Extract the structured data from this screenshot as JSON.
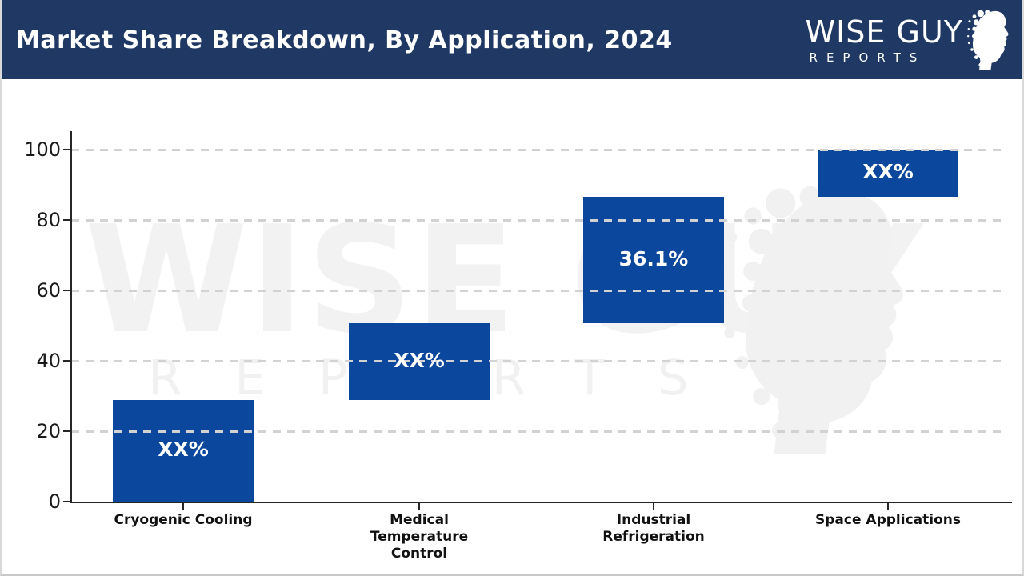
{
  "header": {
    "title": "Market Share Breakdown, By Application, 2024",
    "logo": {
      "line1": "WISE GUY",
      "line2": "REPORTS"
    }
  },
  "watermark": {
    "line1": "WISE GUY",
    "line2": "REPORTS"
  },
  "chart_data": {
    "type": "bar",
    "subtype": "waterfall",
    "title": "Market Share Breakdown, By Application, 2024",
    "categories": [
      "Cryogenic Cooling",
      "Medical Temperature Control",
      "Industrial Refrigeration",
      "Space Applications"
    ],
    "category_label_lines": [
      [
        "Cryogenic Cooling"
      ],
      [
        "Medical",
        "Temperature",
        "Control"
      ],
      [
        "Industrial",
        "Refrigeration"
      ],
      [
        "Space Applications"
      ]
    ],
    "segments": [
      {
        "category": "Cryogenic Cooling",
        "label": "XX%",
        "start": 0,
        "end": 28.9
      },
      {
        "category": "Medical Temperature Control",
        "label": "XX%",
        "start": 28.9,
        "end": 50.6
      },
      {
        "category": "Industrial Refrigeration",
        "label": "36.1%",
        "start": 50.6,
        "end": 86.7
      },
      {
        "category": "Space Applications",
        "label": "XX%",
        "start": 86.7,
        "end": 100
      }
    ],
    "ylim": [
      0,
      100
    ],
    "yticks": [
      0,
      20,
      40,
      60,
      80,
      100
    ],
    "grid": "horizontal-dashed",
    "legend": "none",
    "bar_color": "#0b479d",
    "bar_label_color": "#ffffff",
    "axis_color": "#262626",
    "grid_color": "#d2d2d2",
    "header_bg": "#1f3864"
  }
}
